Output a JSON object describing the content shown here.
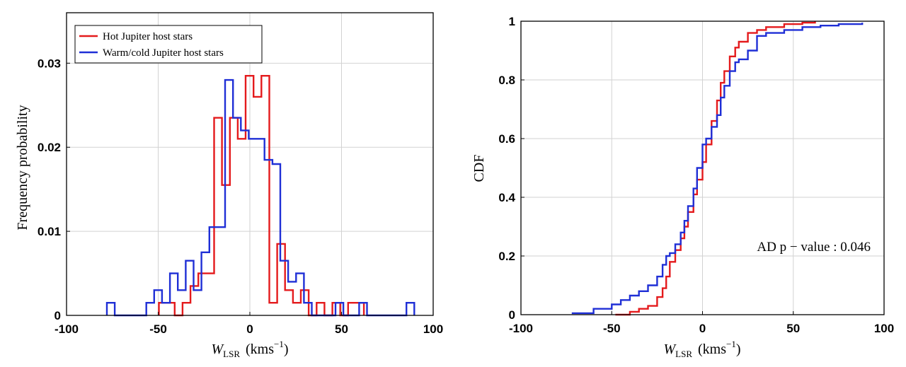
{
  "colors": {
    "hot": "#e41a1c",
    "warm": "#1f2fd6",
    "grid": "#d2d2d2"
  },
  "chart_data": [
    {
      "type": "histogram",
      "xlabel": "W_LSR (kms^-1)",
      "xlabel_main": "W",
      "xlabel_sub": "LSR",
      "xlabel_unit": "(kms",
      "xlabel_sup": "−1",
      "xlabel_close": ")",
      "ylabel": "Frequency probability",
      "xlim": [
        -100,
        100
      ],
      "ylim": [
        0,
        0.036
      ],
      "xticks": [
        -100,
        -50,
        0,
        50,
        100
      ],
      "xtick_labels": [
        "-100",
        "-50",
        "0",
        "50",
        "100"
      ],
      "yticks": [
        0,
        0.01,
        0.02,
        0.03
      ],
      "ytick_labels": [
        "0",
        "0.01",
        "0.02",
        "0.03"
      ],
      "grid": true,
      "legend_position": "top-left",
      "bin_width": 4.3,
      "series": [
        {
          "name": "Hot Jupiter host stars",
          "color": "#e41a1c",
          "bin_edges": [
            -49.6,
            -45.3,
            -41.0,
            -36.7,
            -32.4,
            -28.1,
            -23.8,
            -19.5,
            -15.2,
            -10.9,
            -6.6,
            -2.3,
            2.0,
            6.3,
            10.6,
            14.9,
            19.2,
            23.5,
            27.8,
            32.1,
            36.4,
            40.7,
            45.0,
            49.3,
            53.6,
            57.9,
            62.2
          ],
          "values": [
            0.0015,
            0.0015,
            0.0,
            0.0015,
            0.0035,
            0.005,
            0.005,
            0.0235,
            0.0155,
            0.0235,
            0.021,
            0.0285,
            0.026,
            0.0285,
            0.0015,
            0.0085,
            0.003,
            0.0015,
            0.003,
            0.0,
            0.0015,
            0.0,
            0.0015,
            0.0,
            0.0015,
            0.0015
          ]
        },
        {
          "name": "Warm/cold Jupiter host stars",
          "color": "#1f2fd6",
          "bin_edges": [
            -78.0,
            -73.7,
            -69.4,
            -65.1,
            -60.8,
            -56.5,
            -52.2,
            -47.9,
            -43.6,
            -39.3,
            -35.0,
            -30.7,
            -26.4,
            -22.1,
            -17.8,
            -13.5,
            -9.2,
            -4.9,
            -0.6,
            3.7,
            8.0,
            12.3,
            16.6,
            20.9,
            25.2,
            29.5,
            33.8,
            38.1,
            42.4,
            46.7,
            51.0,
            55.3,
            59.6,
            63.9,
            68.2,
            72.5,
            76.8,
            81.1,
            85.4,
            89.7
          ],
          "values": [
            0.0015,
            0.0,
            0.0,
            0.0,
            0.0,
            0.0015,
            0.003,
            0.0015,
            0.005,
            0.003,
            0.0065,
            0.003,
            0.0075,
            0.0105,
            0.0105,
            0.028,
            0.0235,
            0.022,
            0.021,
            0.021,
            0.0185,
            0.018,
            0.0065,
            0.004,
            0.005,
            0.0015,
            0.0,
            0.0,
            0.0,
            0.0015,
            0.0,
            0.0,
            0.0015,
            0.0,
            0.0,
            0.0,
            0.0,
            0.0,
            0.0015
          ]
        }
      ]
    },
    {
      "type": "line",
      "xlabel": "W_LSR (kms^-1)",
      "xlabel_main": "W",
      "xlabel_sub": "LSR",
      "xlabel_unit": "(kms",
      "xlabel_sup": "−1",
      "xlabel_close": ")",
      "ylabel": "CDF",
      "xlim": [
        -100,
        100
      ],
      "ylim": [
        0,
        1
      ],
      "xticks": [
        -100,
        -50,
        0,
        50,
        100
      ],
      "xtick_labels": [
        "-100",
        "-50",
        "0",
        "50",
        "100"
      ],
      "yticks": [
        0,
        0.2,
        0.4,
        0.6,
        0.8,
        1
      ],
      "ytick_labels": [
        "0",
        "0.2",
        "0.4",
        "0.6",
        "0.8",
        "1"
      ],
      "grid": true,
      "annotation": "AD p − value : 0.046",
      "series": [
        {
          "name": "Hot Jupiter host stars",
          "color": "#e41a1c",
          "x": [
            -48,
            -40,
            -35,
            -30,
            -25,
            -22,
            -20,
            -18,
            -15,
            -12,
            -10,
            -8,
            -5,
            -3,
            0,
            2,
            5,
            8,
            10,
            12,
            15,
            18,
            20,
            25,
            30,
            35,
            45,
            55,
            62
          ],
          "y": [
            0.0,
            0.01,
            0.02,
            0.03,
            0.06,
            0.09,
            0.13,
            0.18,
            0.22,
            0.26,
            0.3,
            0.35,
            0.41,
            0.46,
            0.52,
            0.58,
            0.66,
            0.73,
            0.79,
            0.83,
            0.88,
            0.91,
            0.93,
            0.96,
            0.97,
            0.98,
            0.99,
            0.995,
            1.0
          ]
        },
        {
          "name": "Warm/cold Jupiter host stars",
          "color": "#1f2fd6",
          "x": [
            -72,
            -60,
            -50,
            -45,
            -40,
            -35,
            -30,
            -25,
            -22,
            -20,
            -18,
            -15,
            -12,
            -10,
            -8,
            -5,
            -3,
            0,
            2,
            5,
            8,
            10,
            12,
            15,
            18,
            20,
            25,
            30,
            35,
            45,
            55,
            65,
            75,
            88
          ],
          "y": [
            0.005,
            0.02,
            0.035,
            0.05,
            0.065,
            0.08,
            0.1,
            0.13,
            0.17,
            0.2,
            0.21,
            0.24,
            0.28,
            0.32,
            0.37,
            0.43,
            0.5,
            0.58,
            0.6,
            0.64,
            0.68,
            0.74,
            0.78,
            0.83,
            0.86,
            0.87,
            0.9,
            0.95,
            0.96,
            0.97,
            0.98,
            0.985,
            0.99,
            0.995
          ]
        }
      ]
    }
  ]
}
